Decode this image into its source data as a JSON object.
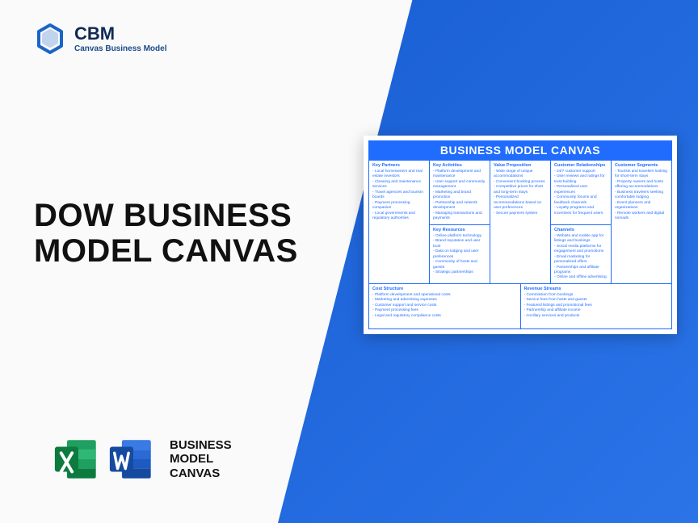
{
  "logo": {
    "main": "CBM",
    "sub": "Canvas Business Model"
  },
  "title_line1": "DOW BUSINESS",
  "title_line2": "MODEL CANVAS",
  "file_label_l1": "BUSINESS",
  "file_label_l2": "MODEL",
  "file_label_l3": "CANVAS",
  "colors": {
    "brand_blue": "#1f6cff",
    "excel_dark": "#0d7a3e",
    "excel_light": "#1fa060",
    "word_dark": "#164a9e",
    "word_light": "#2a6ad4",
    "logo_blue": "#1b64c8"
  },
  "canvas": {
    "title": "BUSINESS MODEL CANVAS",
    "key_partners": {
      "header": "Key Partners",
      "items": [
        "Local homeowners and real estate investors",
        "Cleaning and maintenance services",
        "Travel agencies and tourism boards",
        "Payment processing companies",
        "Local governments and regulatory authorities"
      ]
    },
    "key_activities": {
      "header": "Key Activities",
      "items": [
        "Platform development and maintenance",
        "User support and community management",
        "Marketing and brand promotion",
        "Partnership and network development",
        "Managing transactions and payments"
      ]
    },
    "value_proposition": {
      "header": "Value Proposition",
      "items": [
        "Wide range of unique accommodations",
        "Convenient booking process",
        "Competitive prices for short and long-term stays",
        "Personalized recommendations based on user preferences",
        "Secure payment system"
      ]
    },
    "customer_relationships": {
      "header": "Customer Relationships",
      "items": [
        "24/7 customer support",
        "User reviews and ratings for trust-building",
        "Personalized user experiences",
        "Community forums and feedback channels",
        "Loyalty programs and incentives for frequent users"
      ]
    },
    "customer_segments": {
      "header": "Customer Segments",
      "items": [
        "Tourists and travelers looking for short-term stays",
        "Property owners and hosts offering accommodations",
        "Business travelers seeking comfortable lodging",
        "Event planners and organizations",
        "Remote workers and digital nomads"
      ]
    },
    "key_resources": {
      "header": "Key Resources",
      "items": [
        "Online platform technology",
        "Brand reputation and user trust",
        "Data on lodging and user preferences",
        "Community of hosts and guests",
        "Strategic partnerships"
      ]
    },
    "channels": {
      "header": "Channels",
      "items": [
        "Website and mobile app for listings and bookings",
        "Social media platforms for engagement and promotions",
        "Email marketing for personalized offers",
        "Partnerships and affiliate programs",
        "Online and offline advertising"
      ]
    },
    "cost_structure": {
      "header": "Cost Structure",
      "items": [
        "Platform development and operational costs",
        "Marketing and advertising expenses",
        "Customer support and service costs",
        "Payment processing fees",
        "Legal and regulatory compliance costs"
      ]
    },
    "revenue_streams": {
      "header": "Revenue Streams",
      "items": [
        "Commission from bookings",
        "Service fees from hosts and guests",
        "Featured listings and promotional fees",
        "Partnership and affiliate income",
        "Ancillary services and products"
      ]
    }
  }
}
